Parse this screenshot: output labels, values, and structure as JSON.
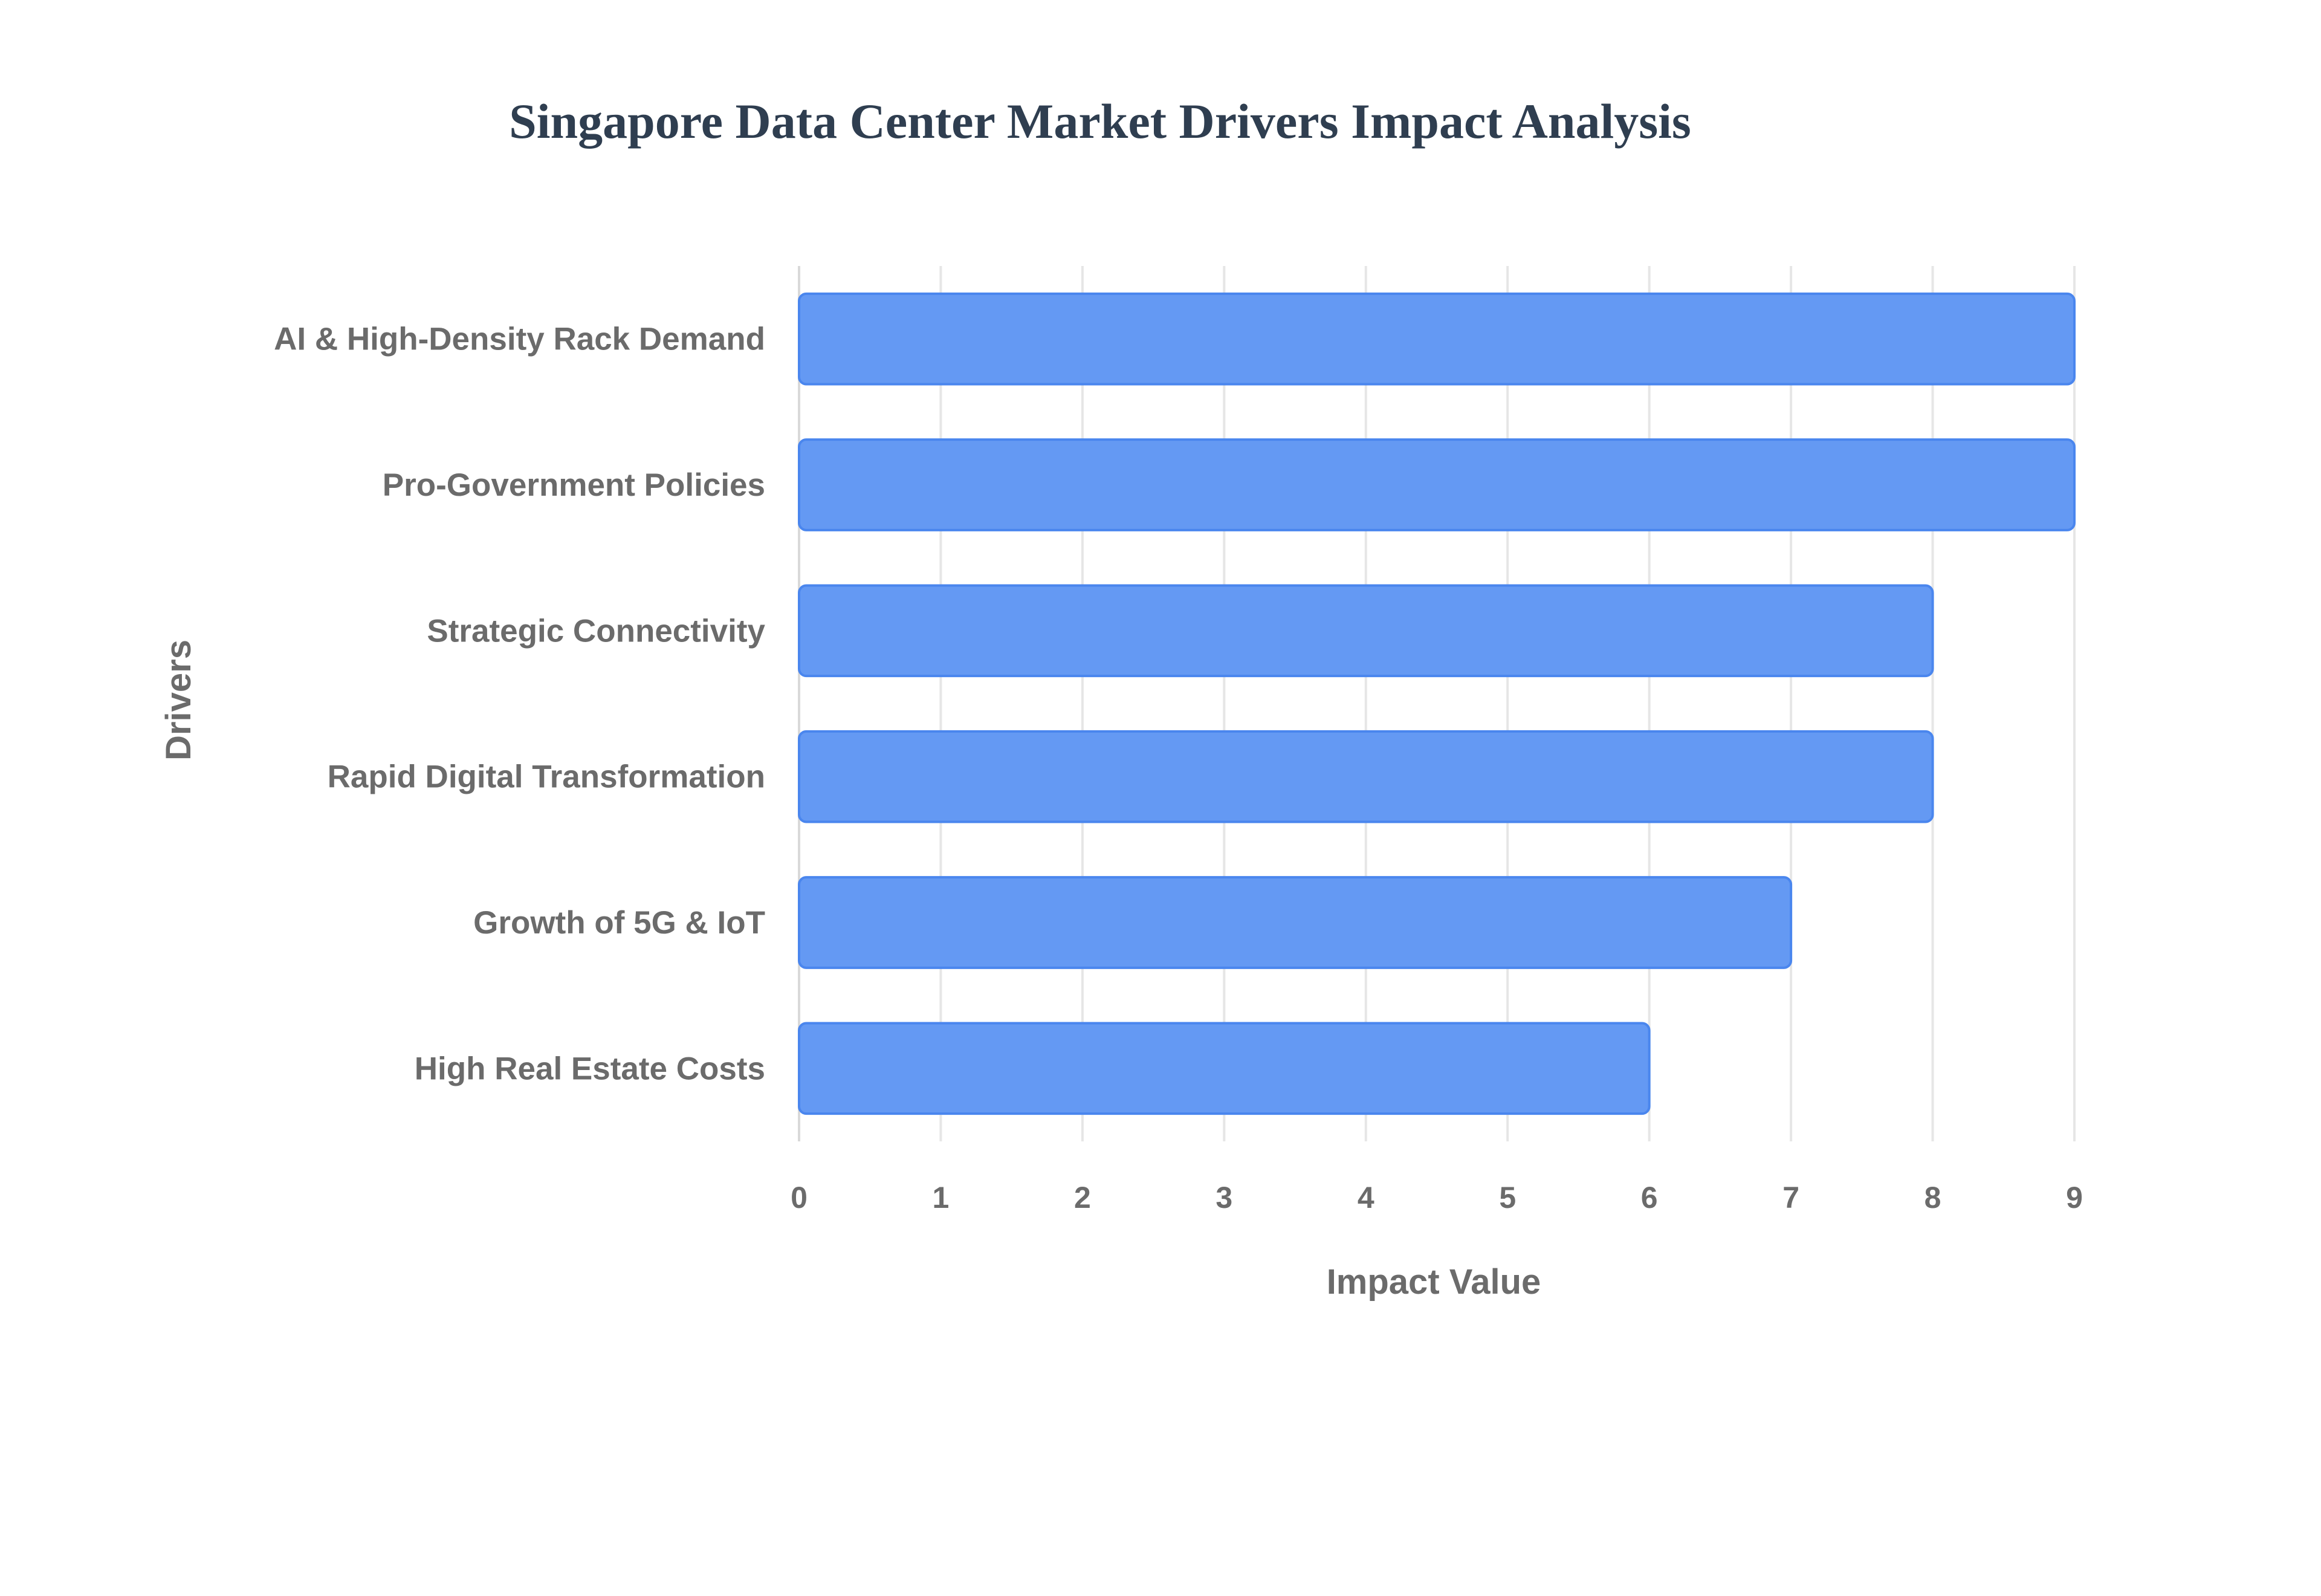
{
  "chart_data": {
    "type": "bar",
    "orientation": "horizontal",
    "title": "Singapore Data Center Market Drivers Impact Analysis",
    "xlabel": "Impact Value",
    "ylabel": "Drivers",
    "categories": [
      "AI & High-Density Rack Demand",
      "Pro-Government Policies",
      "Strategic Connectivity",
      "Rapid Digital Transformation",
      "Growth of 5G & IoT",
      "High Real Estate Costs"
    ],
    "values": [
      9,
      9,
      8,
      8,
      7,
      6
    ],
    "xlim": [
      0,
      9
    ],
    "xticks": [
      0,
      1,
      2,
      3,
      4,
      5,
      6,
      7,
      8,
      9
    ],
    "grid": true,
    "legend": "none",
    "colors": {
      "bar_fill": "#6499f3",
      "bar_stroke": "#4a86ee",
      "title": "#2f3e50",
      "text": "#6b6b6b",
      "grid": "#e6e6e6"
    }
  }
}
